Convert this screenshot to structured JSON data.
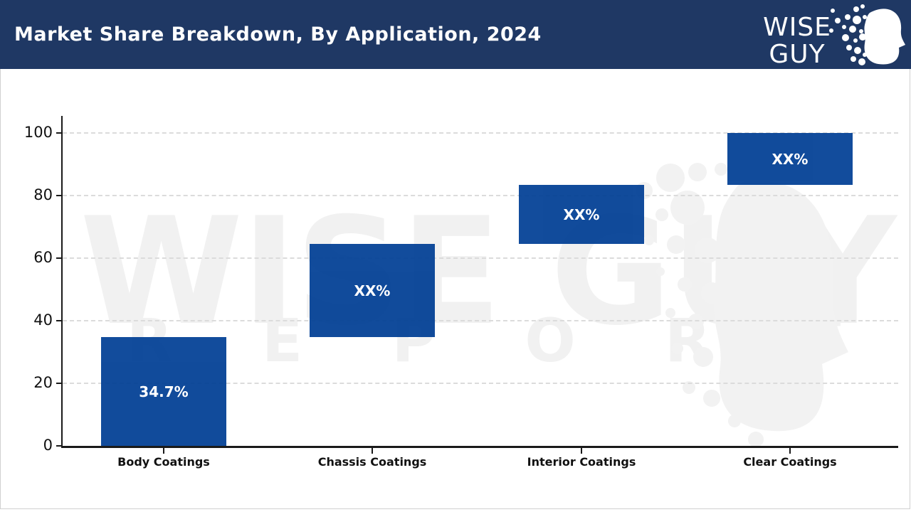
{
  "header": {
    "title": "Market Share Breakdown, By Application, 2024",
    "logo": {
      "brand_line1": "WISE GUY",
      "brand_line2": "REPORTS"
    }
  },
  "watermark": {
    "line1": "WISE GUY",
    "line2": "R E P O R T S"
  },
  "colors": {
    "header_bg": "#1f3864",
    "bar": "#003e94",
    "grid": "#dbdbdb",
    "axis": "#1a1a1a",
    "bar_label": "#ffffff",
    "watermark": "#f1f1f1"
  },
  "chart_data": {
    "type": "bar",
    "subtype": "waterfall",
    "title": "Market Share Breakdown, By Application, 2024",
    "categories": [
      "Body Coatings",
      "Chassis Coatings",
      "Interior Coatings",
      "Clear Coatings"
    ],
    "segments": [
      {
        "category": "Body Coatings",
        "start": 0,
        "end": 34.7,
        "label": "34.7%"
      },
      {
        "category": "Chassis Coatings",
        "start": 34.7,
        "end": 64.5,
        "label": "XX%"
      },
      {
        "category": "Interior Coatings",
        "start": 64.5,
        "end": 83.4,
        "label": "XX%"
      },
      {
        "category": "Clear Coatings",
        "start": 83.4,
        "end": 100,
        "label": "XX%"
      }
    ],
    "xlabel": "",
    "ylabel": "",
    "ylim": [
      0,
      105
    ],
    "yticks": [
      0,
      20,
      40,
      60,
      80,
      100
    ],
    "grid": "dashed horizontal",
    "legend": "none"
  }
}
